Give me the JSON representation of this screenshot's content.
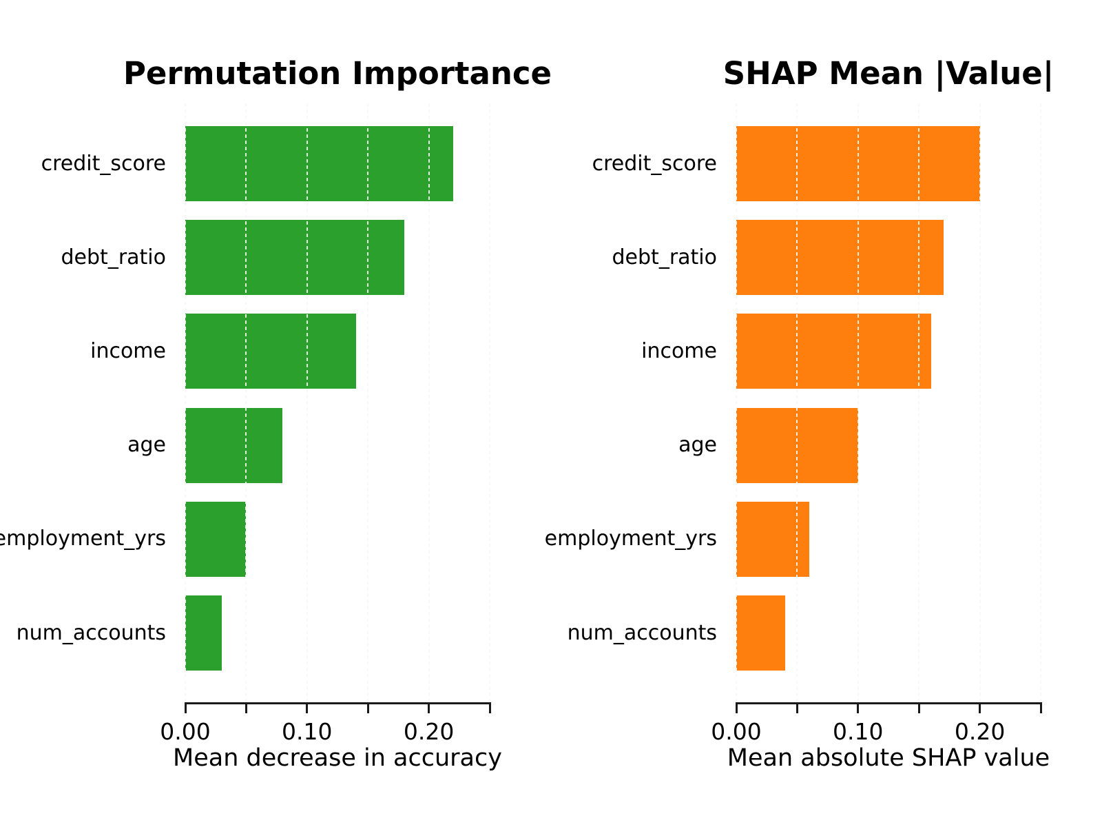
{
  "figure": {
    "background": "#ffffff",
    "text_color": "#000000",
    "axis_color": "#1a1a1a",
    "gridline_color": "#d4d4d4"
  },
  "chart_data": [
    {
      "type": "bar",
      "orientation": "horizontal",
      "title": "Permutation Importance",
      "xlabel": "Mean decrease in accuracy",
      "categories": [
        "credit_score",
        "debt_ratio",
        "income",
        "age",
        "employment_yrs",
        "num_accounts"
      ],
      "values": [
        0.22,
        0.18,
        0.14,
        0.08,
        0.05,
        0.03
      ],
      "bar_color": "#2ca02c",
      "xlim": [
        0,
        0.25
      ],
      "xticks": [
        0,
        0.05,
        0.1,
        0.15,
        0.2,
        0.25
      ],
      "xtick_labels": [
        "0.00",
        "",
        "0.10",
        "",
        "0.20",
        ""
      ],
      "grid": {
        "axis": "x",
        "style": "dashed"
      },
      "legend": "none"
    },
    {
      "type": "bar",
      "orientation": "horizontal",
      "title": "SHAP Mean |Value|",
      "xlabel": "Mean absolute SHAP value",
      "categories": [
        "credit_score",
        "debt_ratio",
        "income",
        "age",
        "employment_yrs",
        "num_accounts"
      ],
      "values": [
        0.2,
        0.17,
        0.16,
        0.1,
        0.06,
        0.04
      ],
      "bar_color": "#ff7f0e",
      "xlim": [
        0,
        0.25
      ],
      "xticks": [
        0,
        0.05,
        0.1,
        0.15,
        0.2,
        0.25
      ],
      "xtick_labels": [
        "0.00",
        "",
        "0.10",
        "",
        "0.20",
        ""
      ],
      "grid": {
        "axis": "x",
        "style": "dashed"
      },
      "legend": "none"
    }
  ]
}
